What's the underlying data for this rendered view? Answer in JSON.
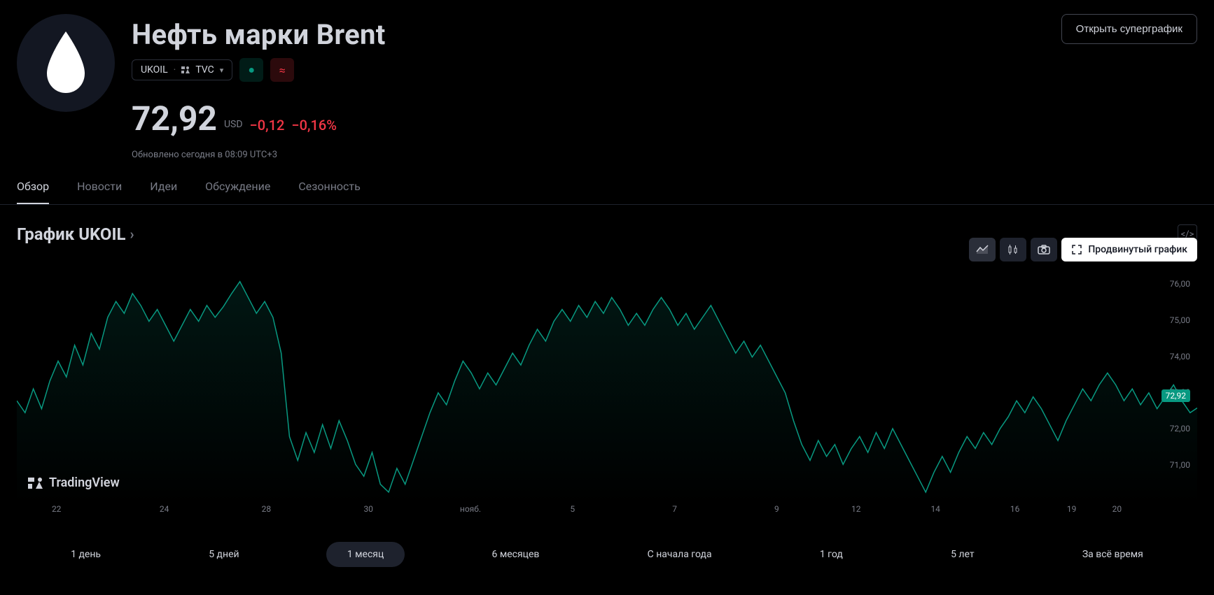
{
  "header": {
    "title": "Нефть марки Brent",
    "ticker": "UKOIL",
    "provider": "TVC",
    "open_superchart_label": "Открыть суперграфик"
  },
  "price": {
    "value": "72,92",
    "currency": "USD",
    "change_abs": "−0,12",
    "change_pct": "−0,16%",
    "change_color": "#f23645",
    "updated": "Обновлено сегодня в 08:09 UTC+3"
  },
  "tabs": [
    {
      "label": "Обзор",
      "active": true
    },
    {
      "label": "Новости",
      "active": false
    },
    {
      "label": "Идеи",
      "active": false
    },
    {
      "label": "Обсуждение",
      "active": false
    },
    {
      "label": "Сезонность",
      "active": false
    }
  ],
  "chart_section": {
    "title": "График UKOIL",
    "advanced_button": "Продвинутый график",
    "watermark": "TradingView"
  },
  "chart": {
    "type": "line",
    "line_color": "#089981",
    "line_width": 1.5,
    "background_color": "#000000",
    "grid_color": "#1e222d",
    "x_domain": [
      0,
      100
    ],
    "y_domain": [
      70.5,
      76.5
    ],
    "y_ticks": [
      71.0,
      72.0,
      73.0,
      74.0,
      75.0,
      76.0
    ],
    "y_tick_labels": [
      "71,00",
      "72,00",
      "73,00",
      "74,00",
      "75,00",
      "76,00"
    ],
    "current_price": 72.92,
    "current_price_label": "72,92",
    "current_price_tag_color": "#089981",
    "x_ticks": [
      {
        "pos": 3.5,
        "label": "22"
      },
      {
        "pos": 13,
        "label": "24"
      },
      {
        "pos": 22,
        "label": "28"
      },
      {
        "pos": 31,
        "label": "30"
      },
      {
        "pos": 40,
        "label": "нояб."
      },
      {
        "pos": 49,
        "label": "5"
      },
      {
        "pos": 58,
        "label": "7"
      },
      {
        "pos": 67,
        "label": "9"
      },
      {
        "pos": 74,
        "label": "12"
      },
      {
        "pos": 81,
        "label": "14"
      },
      {
        "pos": 88,
        "label": "16"
      },
      {
        "pos": 93,
        "label": "19"
      },
      {
        "pos": 97,
        "label": "20"
      }
    ],
    "series": [
      [
        0,
        73.1
      ],
      [
        0.7,
        72.8
      ],
      [
        1.4,
        73.4
      ],
      [
        2.1,
        72.9
      ],
      [
        2.8,
        73.6
      ],
      [
        3.5,
        74.1
      ],
      [
        4.2,
        73.7
      ],
      [
        4.9,
        74.5
      ],
      [
        5.6,
        74.0
      ],
      [
        6.3,
        74.8
      ],
      [
        7,
        74.4
      ],
      [
        7.7,
        75.2
      ],
      [
        8.4,
        75.6
      ],
      [
        9.1,
        75.3
      ],
      [
        9.8,
        75.8
      ],
      [
        10.5,
        75.5
      ],
      [
        11.2,
        75.1
      ],
      [
        11.9,
        75.4
      ],
      [
        12.6,
        75.0
      ],
      [
        13.3,
        74.6
      ],
      [
        14,
        75.0
      ],
      [
        14.7,
        75.4
      ],
      [
        15.4,
        75.1
      ],
      [
        16.1,
        75.5
      ],
      [
        16.8,
        75.2
      ],
      [
        17.5,
        75.47
      ],
      [
        18.2,
        75.8
      ],
      [
        18.9,
        76.1
      ],
      [
        19.6,
        75.7
      ],
      [
        20.3,
        75.3
      ],
      [
        21,
        75.6
      ],
      [
        21.7,
        75.2
      ],
      [
        22.4,
        74.3
      ],
      [
        23.1,
        72.2
      ],
      [
        23.8,
        71.6
      ],
      [
        24.5,
        72.3
      ],
      [
        25.2,
        71.8
      ],
      [
        25.9,
        72.5
      ],
      [
        26.6,
        71.9
      ],
      [
        27.3,
        72.6
      ],
      [
        28,
        72.1
      ],
      [
        28.7,
        71.5
      ],
      [
        29.4,
        71.2
      ],
      [
        30.1,
        71.8
      ],
      [
        30.8,
        71.0
      ],
      [
        31.5,
        70.8
      ],
      [
        32.2,
        71.4
      ],
      [
        32.9,
        71.0
      ],
      [
        33.6,
        71.6
      ],
      [
        34.3,
        72.2
      ],
      [
        35,
        72.8
      ],
      [
        35.7,
        73.3
      ],
      [
        36.4,
        73.0
      ],
      [
        37.1,
        73.6
      ],
      [
        37.8,
        74.1
      ],
      [
        38.5,
        73.8
      ],
      [
        39.2,
        73.4
      ],
      [
        39.9,
        73.8
      ],
      [
        40.6,
        73.5
      ],
      [
        41.3,
        73.9
      ],
      [
        42,
        74.3
      ],
      [
        42.7,
        74.0
      ],
      [
        43.4,
        74.5
      ],
      [
        44.1,
        74.9
      ],
      [
        44.8,
        74.6
      ],
      [
        45.5,
        75.1
      ],
      [
        46.2,
        75.4
      ],
      [
        46.9,
        75.1
      ],
      [
        47.6,
        75.5
      ],
      [
        48.3,
        75.2
      ],
      [
        49,
        75.6
      ],
      [
        49.7,
        75.3
      ],
      [
        50.4,
        75.7
      ],
      [
        51.1,
        75.4
      ],
      [
        51.8,
        75.0
      ],
      [
        52.5,
        75.3
      ],
      [
        53.2,
        75.0
      ],
      [
        53.9,
        75.4
      ],
      [
        54.6,
        75.7
      ],
      [
        55.3,
        75.4
      ],
      [
        56,
        75.0
      ],
      [
        56.7,
        75.3
      ],
      [
        57.4,
        74.9
      ],
      [
        58.1,
        75.2
      ],
      [
        58.8,
        75.5
      ],
      [
        59.5,
        75.1
      ],
      [
        60.2,
        74.7
      ],
      [
        60.9,
        74.3
      ],
      [
        61.6,
        74.6
      ],
      [
        62.3,
        74.2
      ],
      [
        63,
        74.5
      ],
      [
        63.7,
        74.1
      ],
      [
        64.4,
        73.7
      ],
      [
        65.1,
        73.3
      ],
      [
        65.8,
        72.6
      ],
      [
        66.5,
        72.0
      ],
      [
        67.2,
        71.6
      ],
      [
        67.9,
        72.1
      ],
      [
        68.6,
        71.7
      ],
      [
        69.3,
        72.0
      ],
      [
        70,
        71.5
      ],
      [
        70.7,
        71.9
      ],
      [
        71.4,
        72.2
      ],
      [
        72.1,
        71.8
      ],
      [
        72.8,
        72.3
      ],
      [
        73.5,
        71.9
      ],
      [
        74.2,
        72.4
      ],
      [
        74.9,
        72.0
      ],
      [
        75.6,
        71.6
      ],
      [
        76.3,
        71.2
      ],
      [
        77,
        70.8
      ],
      [
        77.7,
        71.3
      ],
      [
        78.4,
        71.7
      ],
      [
        79.1,
        71.3
      ],
      [
        79.8,
        71.8
      ],
      [
        80.5,
        72.2
      ],
      [
        81.2,
        71.9
      ],
      [
        81.9,
        72.3
      ],
      [
        82.6,
        72.0
      ],
      [
        83.3,
        72.4
      ],
      [
        84,
        72.7
      ],
      [
        84.7,
        73.1
      ],
      [
        85.4,
        72.8
      ],
      [
        86.1,
        73.2
      ],
      [
        86.8,
        72.9
      ],
      [
        87.5,
        72.5
      ],
      [
        88.2,
        72.1
      ],
      [
        88.9,
        72.6
      ],
      [
        89.6,
        73.0
      ],
      [
        90.3,
        73.4
      ],
      [
        91,
        73.1
      ],
      [
        91.7,
        73.5
      ],
      [
        92.4,
        73.8
      ],
      [
        93.1,
        73.5
      ],
      [
        93.8,
        73.1
      ],
      [
        94.5,
        73.4
      ],
      [
        95.2,
        73.0
      ],
      [
        95.9,
        73.3
      ],
      [
        96.6,
        72.9
      ],
      [
        97.3,
        73.2
      ],
      [
        98,
        73.5
      ],
      [
        98.7,
        73.1
      ],
      [
        99.4,
        72.8
      ],
      [
        100,
        72.92
      ]
    ]
  },
  "ranges": [
    {
      "label": "1 день",
      "active": false
    },
    {
      "label": "5 дней",
      "active": false
    },
    {
      "label": "1 месяц",
      "active": true
    },
    {
      "label": "6 месяцев",
      "active": false
    },
    {
      "label": "С начала года",
      "active": false
    },
    {
      "label": "1 год",
      "active": false
    },
    {
      "label": "5 лет",
      "active": false
    },
    {
      "label": "За всё время",
      "active": false
    }
  ]
}
